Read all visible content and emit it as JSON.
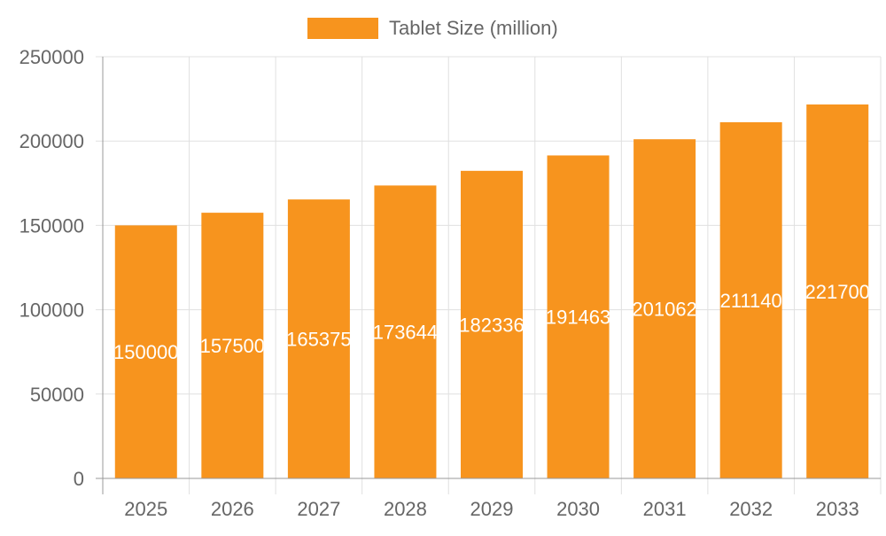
{
  "chart_data": {
    "type": "bar",
    "categories": [
      "2025",
      "2026",
      "2027",
      "2028",
      "2029",
      "2030",
      "2031",
      "2032",
      "2033"
    ],
    "series": [
      {
        "name": "Tablet Size (million)",
        "values": [
          150000,
          157500,
          165375,
          173644,
          182336,
          191463,
          201062,
          211140,
          221700
        ],
        "color": "#f7941e"
      }
    ],
    "data_labels": [
      "150000",
      "157500",
      "165375",
      "173644",
      "182336",
      "191463",
      "201062",
      "211140",
      "221700"
    ],
    "ylim": [
      0,
      250000
    ],
    "yticks": [
      "0",
      "50000",
      "100000",
      "150000",
      "200000",
      "250000"
    ],
    "yticks_values": [
      0,
      50000,
      100000,
      150000,
      200000,
      250000
    ],
    "grid": true,
    "legend": "top",
    "colors": {
      "bar": "#f7941e",
      "grid": "#e0e0e0",
      "axis": "#999999",
      "text": "#666666",
      "label": "#ffffff"
    }
  }
}
